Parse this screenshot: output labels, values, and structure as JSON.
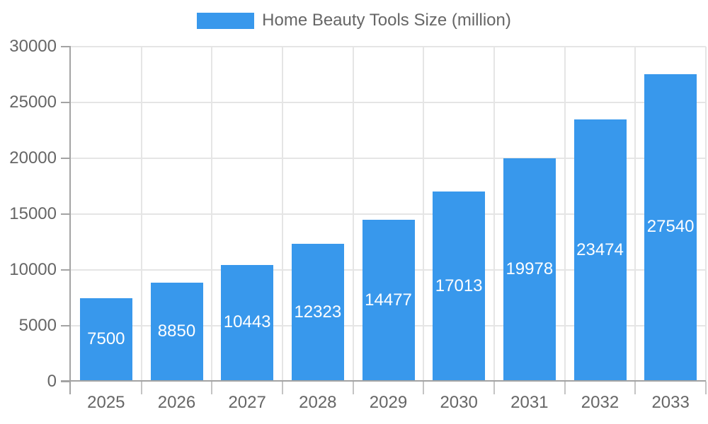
{
  "chart_data": {
    "type": "bar",
    "title": "",
    "xlabel": "",
    "ylabel": "",
    "legend": {
      "position": "top",
      "label": "Home Beauty Tools Size (million)"
    },
    "categories": [
      "2025",
      "2026",
      "2027",
      "2028",
      "2029",
      "2030",
      "2031",
      "2032",
      "2033"
    ],
    "series": [
      {
        "name": "Home Beauty Tools Size (million)",
        "values": [
          7500,
          8850,
          10443,
          12323,
          14477,
          17013,
          19978,
          23474,
          27540
        ]
      }
    ],
    "value_labels_shown": true,
    "ylim": [
      0,
      30000
    ],
    "ytick_step": 5000,
    "yticks": [
      0,
      5000,
      10000,
      15000,
      20000,
      25000,
      30000
    ],
    "grid": true,
    "colors": {
      "bar": "#3898ec",
      "value_label": "#ffffff",
      "grid": "#e5e5e5",
      "axis": "#a3a3a3",
      "tick": "#c4c4c4",
      "tick_label": "#666666",
      "legend_text": "#666666",
      "background": "#ffffff"
    }
  }
}
